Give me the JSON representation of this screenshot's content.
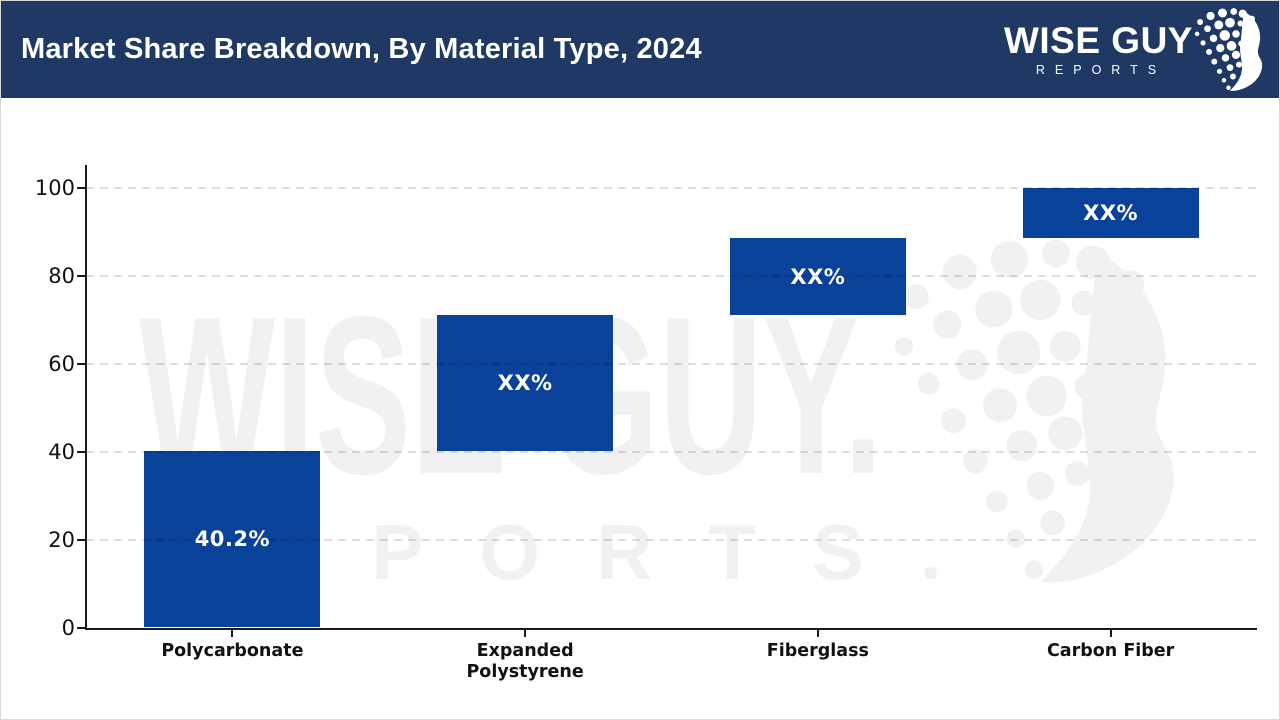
{
  "header": {
    "title": "Market Share Breakdown, By Material Type, 2024",
    "logo": {
      "wordmark": "WISE GUY",
      "subtitle": "REPORTS"
    }
  },
  "watermark": {
    "line1": "WISE GUY.",
    "line2": "REPORTS."
  },
  "chart_data": {
    "type": "bar",
    "subtype": "floating-waterfall-bars",
    "title": "Market Share Breakdown, By Material Type, 2024",
    "xlabel": "",
    "ylabel": "",
    "categories": [
      "Polycarbonate",
      "Expanded Polystyrene",
      "Fiberglass",
      "Carbon Fiber"
    ],
    "segments": [
      {
        "category": "Polycarbonate",
        "from": 0,
        "to": 40.2,
        "label": "40.2%"
      },
      {
        "category": "Expanded Polystyrene",
        "from": 40.2,
        "to": 71,
        "label": "XX%"
      },
      {
        "category": "Fiberglass",
        "from": 71,
        "to": 88.6,
        "label": "XX%"
      },
      {
        "category": "Carbon Fiber",
        "from": 88.6,
        "to": 100,
        "label": "XX%"
      }
    ],
    "ylim": [
      0,
      100
    ],
    "yticks": [
      0,
      20,
      40,
      60,
      80,
      100
    ],
    "grid": "horizontal-dashed",
    "legend": "none",
    "bar_color": "#0a4199",
    "bar_label_color": "#ffffff"
  },
  "colors": {
    "header_bg": "#1f3864",
    "background": "#ffffff",
    "axis": "#1a1a1a",
    "watermark": "#f1f1f1"
  }
}
